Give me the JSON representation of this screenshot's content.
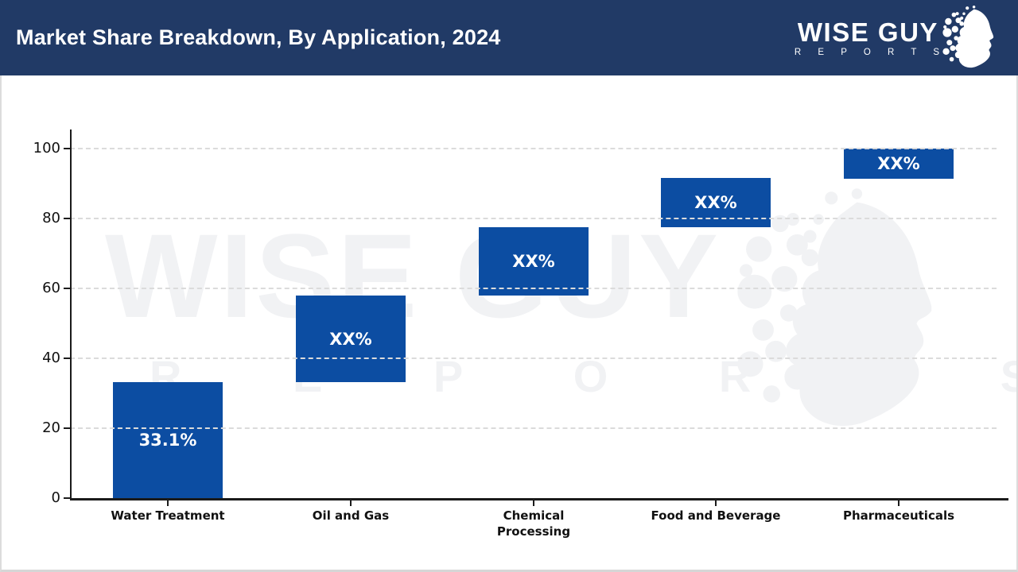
{
  "header": {
    "title": "Market Share Breakdown, By Application, 2024",
    "brand": {
      "line1": "WISE GUY",
      "line2": "R E P O R T S"
    }
  },
  "watermark": {
    "line1": "WISE GUY",
    "line2": "R E P O R T S"
  },
  "chart_data": {
    "type": "bar",
    "subtype": "waterfall",
    "title": "Market Share Breakdown, By Application, 2024",
    "categories": [
      "Water Treatment",
      "Oil and Gas",
      "Chemical\nProcessing",
      "Food and Beverage",
      "Pharmaceuticals"
    ],
    "segments": [
      {
        "category": "Water Treatment",
        "start": 0,
        "end": 33.1,
        "label": "33.1%"
      },
      {
        "category": "Oil and Gas",
        "start": 33.1,
        "end": 58.0,
        "label": "XX%"
      },
      {
        "category": "Chemical Processing",
        "start": 58.0,
        "end": 77.4,
        "label": "XX%"
      },
      {
        "category": "Food and Beverage",
        "start": 77.5,
        "end": 91.7,
        "label": "XX%"
      },
      {
        "category": "Pharmaceuticals",
        "start": 91.4,
        "end": 100,
        "label": "XX%"
      }
    ],
    "y_ticks": [
      0,
      20,
      40,
      60,
      80,
      100
    ],
    "ylim": [
      0,
      104
    ],
    "xlabel": "",
    "ylabel": "",
    "grid": "horizontal-dashed",
    "legend": "none",
    "bar_color": "#0C4DA2",
    "bar_label_color": "#ffffff"
  },
  "colors": {
    "header_bg": "#213A66",
    "bar": "#0C4DA2",
    "grid": "#DBDBDB",
    "axis": "#1B1B1B",
    "watermark": "#F1F2F4",
    "frame_border": "#DCDCDC"
  }
}
